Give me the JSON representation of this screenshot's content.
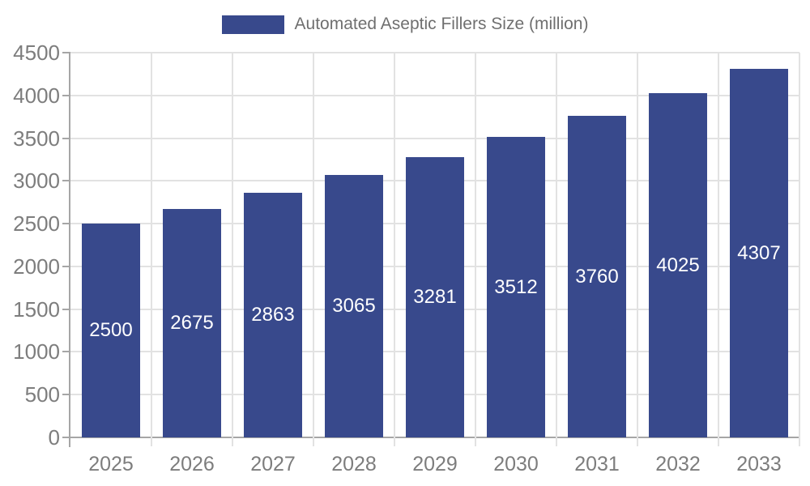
{
  "legend": {
    "label": "Automated Aseptic Fillers Size (million)"
  },
  "chart_data": {
    "type": "bar",
    "title": "",
    "series_name": "Automated Aseptic Fillers Size (million)",
    "categories": [
      "2025",
      "2026",
      "2027",
      "2028",
      "2029",
      "2030",
      "2031",
      "2032",
      "2033"
    ],
    "values": [
      2500,
      2675,
      2863,
      3065,
      3281,
      3512,
      3760,
      4025,
      4307
    ],
    "bar_value_labels_visible": true,
    "xlabel": "",
    "ylabel": "",
    "ylim": [
      0,
      4500
    ],
    "yticks": [
      0,
      500,
      1000,
      1500,
      2000,
      2500,
      3000,
      3500,
      4000,
      4500
    ],
    "grid": true,
    "legend_position": "top-center"
  },
  "colors": {
    "bar": "#38498C",
    "bar_value_label": "#ffffff",
    "axis_text": "#7d7d7d",
    "legend_text": "#6f6f6f",
    "gridline": "#e2e2e2",
    "axis_line": "#a6a6a6",
    "background": "#ffffff"
  }
}
